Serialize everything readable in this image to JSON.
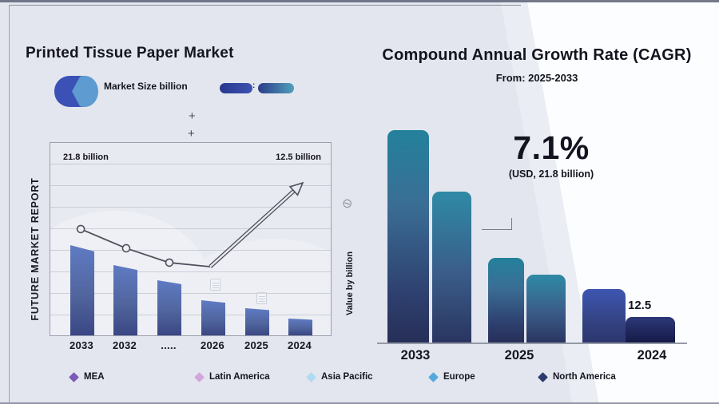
{
  "header": {
    "title": "Printed Tissue Paper Market",
    "legend_label": "Market Size billion",
    "ratio_separator": ":"
  },
  "left_chart": {
    "watermark": "FUTURE MARKET REPORT",
    "label_top_left": "21.8 billion",
    "label_top_right": "12.5 billion",
    "plus_marks": [
      "+",
      "+"
    ]
  },
  "middle": {
    "axis_label": "Value by billion",
    "minus_icon": "⊖"
  },
  "right_chart": {
    "title": "Compound Annual Growth Rate (CAGR)",
    "subtitle": "From: 2025-2033",
    "cagr_value": "7.1%",
    "cagr_note": "(USD, 21.8 billion)",
    "value_label": "12.5"
  },
  "legend": {
    "items": [
      {
        "label": "MEA",
        "color": "#7a5cb8"
      },
      {
        "label": "Latin America",
        "color": "#d2a6da"
      },
      {
        "label": "Asia Pacific",
        "color": "#aedbf0"
      },
      {
        "label": "Europe",
        "color": "#55a8de"
      },
      {
        "label": "North America",
        "color": "#2c3a6e"
      }
    ]
  },
  "chart_data": [
    {
      "type": "bar",
      "subtype": "bar with line-and-arrow overlay",
      "title": "Printed Tissue Paper Market",
      "series_label": "Market Size billion",
      "categories": [
        "2033",
        "2032",
        ".....",
        "2026",
        "2025",
        "2024"
      ],
      "bar_heights_relative": [
        1.0,
        0.78,
        0.61,
        0.39,
        0.3,
        0.19
      ],
      "labeled_values": {
        "2033": "21.8 billion",
        "2024": "12.5 billion"
      },
      "line_overlay": {
        "points": [
          [
            0.108,
            0.444
          ],
          [
            0.269,
            0.543
          ],
          [
            0.422,
            0.617
          ],
          [
            0.567,
            0.638
          ]
        ],
        "arrow_tip": [
          0.895,
          0.206
        ]
      },
      "xlabel": "",
      "ylabel": "Value by billion",
      "grid": true,
      "legend_position": "top-left"
    },
    {
      "type": "bar",
      "title": "Compound Annual Growth Rate (CAGR)",
      "subtitle": "From: 2025-2033",
      "categories": [
        "2033",
        "2025",
        "2024"
      ],
      "series": [
        {
          "name": "bar-left",
          "heights_relative": [
            1.0,
            0.4,
            0.25
          ]
        },
        {
          "name": "bar-right",
          "heights_relative": [
            0.71,
            0.32,
            0.12
          ]
        }
      ],
      "annotations": {
        "cagr": "7.1%",
        "basis": "(USD, 21.8 billion)",
        "value_2024": "12.5"
      },
      "grid": false
    }
  ]
}
